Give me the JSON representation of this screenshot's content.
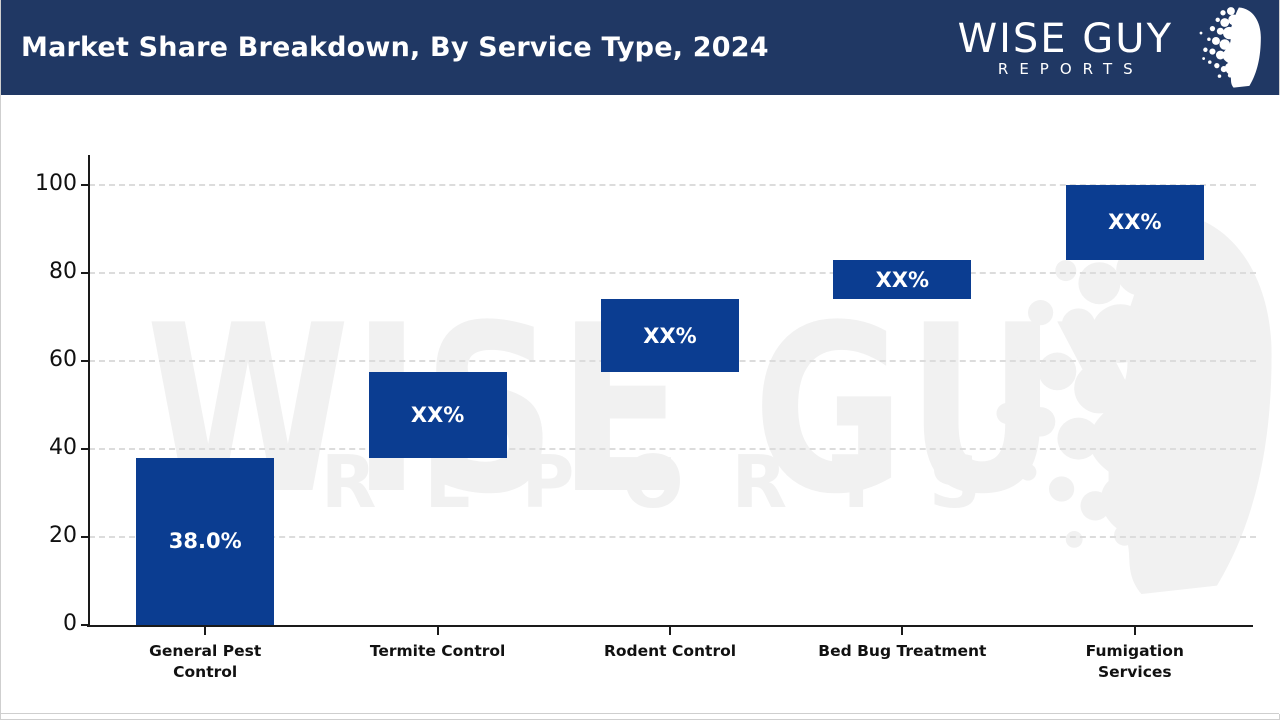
{
  "header": {
    "title": "Market Share Breakdown, By Service Type, 2024",
    "logo": {
      "line1": "WISE GUY",
      "line2": "REPORTS"
    }
  },
  "watermark": {
    "line1": "WISE GUY",
    "line2": "REPORTS"
  },
  "colors": {
    "header_bg": "#203864",
    "bar": "#0b3d91",
    "bar_label_text": "#ffffff",
    "grid": "#dcdcdc",
    "axis": "#1a1a1a",
    "watermark": "#f1f1f1"
  },
  "chart_data": {
    "type": "bar",
    "subtype": "waterfall",
    "title": "Market Share Breakdown, By Service Type, 2024",
    "xlabel": "",
    "ylabel": "",
    "ylim": [
      0,
      105
    ],
    "yticks": [
      0,
      20,
      40,
      60,
      80,
      100
    ],
    "grid": "dashed-horizontal",
    "legend": "none",
    "categories": [
      "General Pest\nControl",
      "Termite Control",
      "Rodent Control",
      "Bed Bug Treatment",
      "Fumigation\nServices"
    ],
    "bars": [
      {
        "category": "General Pest Control",
        "label": "38.0%",
        "value": 38.0,
        "start": 0,
        "end": 38
      },
      {
        "category": "Termite Control",
        "label": "XX%",
        "value": 19.5,
        "start": 38,
        "end": 57.5
      },
      {
        "category": "Rodent Control",
        "label": "XX%",
        "value": 16.5,
        "start": 57.5,
        "end": 74
      },
      {
        "category": "Bed Bug Treatment",
        "label": "XX%",
        "value": 9.0,
        "start": 74,
        "end": 83
      },
      {
        "category": "Fumigation Services",
        "label": "XX%",
        "value": 17.0,
        "start": 83,
        "end": 100
      }
    ]
  }
}
